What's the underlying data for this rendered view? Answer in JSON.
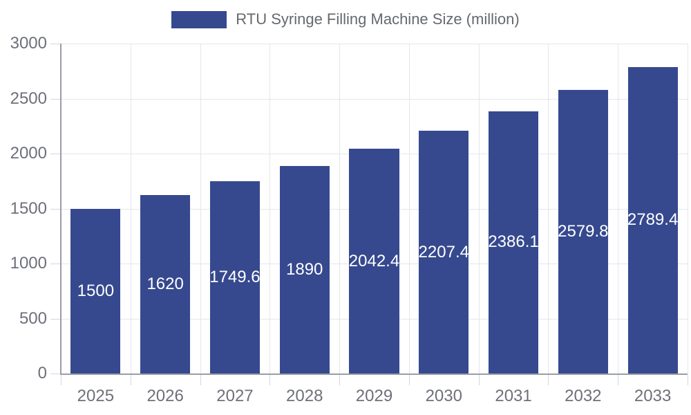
{
  "legend": {
    "label": "RTU Syringe Filling Machine Size (million)"
  },
  "chart_data": {
    "type": "bar",
    "title": "RTU Syringe Filling Machine Size (million)",
    "categories": [
      "2025",
      "2026",
      "2027",
      "2028",
      "2029",
      "2030",
      "2031",
      "2032",
      "2033"
    ],
    "series": [
      {
        "name": "RTU Syringe Filling Machine Size (million)",
        "values": [
          1500,
          1620,
          1749.6,
          1890,
          2042.4,
          2207.4,
          2386.1,
          2579.8,
          2789.4
        ]
      }
    ],
    "value_labels": [
      "1500",
      "1620",
      "1749.6",
      "1890",
      "2042.4",
      "2207.4",
      "2386.1",
      "2579.8",
      "2789.4"
    ],
    "xlabel": "",
    "ylabel": "",
    "ylim": [
      0,
      3000
    ],
    "y_ticks": [
      0,
      500,
      1000,
      1500,
      2000,
      2500,
      3000
    ],
    "grid": true,
    "legend_position": "top"
  },
  "colors": {
    "bar": "#36498F",
    "axis_line": "#999EA4",
    "gridline": "#E4E6EA",
    "tick": "#D4D7DC",
    "axis_text": "#6E7079",
    "legend_text": "#65696E",
    "value_label_text": "#FFFFFF",
    "background": "#FFFFFF"
  }
}
